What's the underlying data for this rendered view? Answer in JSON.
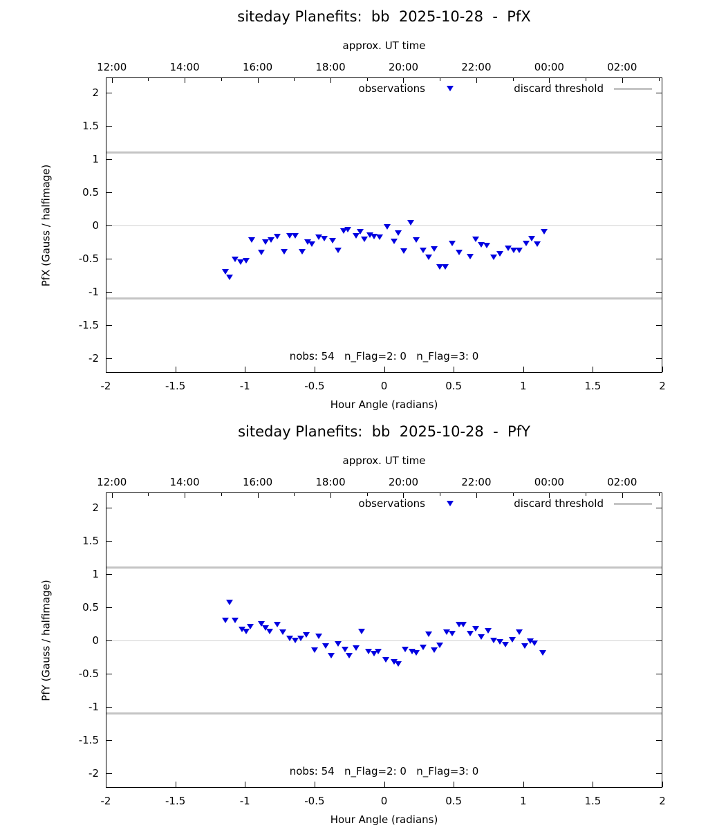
{
  "page": {
    "background": "#ffffff"
  },
  "colors": {
    "marker": "#0000e0",
    "discard_threshold_line": "#c4c4c4",
    "zero_line": "#d2d2d2",
    "axis": "#000000",
    "text": "#000000"
  },
  "chart_data": [
    {
      "type": "scatter",
      "title": "siteday Planefits:  bb  2025-10-28  -  PfX",
      "x2label": "approx. UT time",
      "xlabel": "Hour Angle (radians)",
      "ylabel": "PfX (Gauss / halfimage)",
      "stats_label": "nobs: 54   n_Flag=2: 0   n_Flag=3: 0",
      "legend": [
        {
          "label": "observations",
          "marker": "triangle-down-icon"
        },
        {
          "label": "discard threshold",
          "marker": "gray-line"
        }
      ],
      "legend_position": "top-right-inside",
      "grid": "off",
      "xlim": [
        -2,
        2
      ],
      "ylim": [
        -2.2,
        2.2
      ],
      "xticks": [
        "-2",
        "-1.5",
        "-1",
        "-0.5",
        "0",
        "0.5",
        "1",
        "1.5",
        "2"
      ],
      "yticks": [
        "2",
        "1.5",
        "1",
        "0.5",
        "0",
        "-0.5",
        "-1",
        "-1.5",
        "-2"
      ],
      "x2": {
        "tick_hours": [
          0,
          1,
          2,
          3,
          4,
          5,
          6,
          7,
          8,
          9,
          10,
          11,
          12,
          13,
          14,
          15
        ],
        "labels": [
          {
            "text": "12:00",
            "hour": 0
          },
          {
            "text": "14:00",
            "hour": 2
          },
          {
            "text": "16:00",
            "hour": 4
          },
          {
            "text": "18:00",
            "hour": 6
          },
          {
            "text": "20:00",
            "hour": 8
          },
          {
            "text": "22:00",
            "hour": 10
          },
          {
            "text": "00:00",
            "hour": 12
          },
          {
            "text": "02:00",
            "hour": 14
          }
        ]
      },
      "thresholds": [
        1.1,
        -1.1
      ],
      "zero_line": 0,
      "nobs": 54,
      "points": [
        [
          -1.14,
          -0.7
        ],
        [
          -1.11,
          -0.78
        ],
        [
          -1.07,
          -0.51
        ],
        [
          -1.03,
          -0.55
        ],
        [
          -0.99,
          -0.53
        ],
        [
          -0.95,
          -0.22
        ],
        [
          -0.88,
          -0.41
        ],
        [
          -0.85,
          -0.25
        ],
        [
          -0.81,
          -0.22
        ],
        [
          -0.77,
          -0.17
        ],
        [
          -0.72,
          -0.4
        ],
        [
          -0.68,
          -0.16
        ],
        [
          -0.64,
          -0.16
        ],
        [
          -0.59,
          -0.4
        ],
        [
          -0.55,
          -0.25
        ],
        [
          -0.52,
          -0.28
        ],
        [
          -0.47,
          -0.18
        ],
        [
          -0.43,
          -0.2
        ],
        [
          -0.37,
          -0.23
        ],
        [
          -0.33,
          -0.37
        ],
        [
          -0.29,
          -0.08
        ],
        [
          -0.26,
          -0.06
        ],
        [
          -0.2,
          -0.16
        ],
        [
          -0.17,
          -0.09
        ],
        [
          -0.14,
          -0.21
        ],
        [
          -0.1,
          -0.15
        ],
        [
          -0.07,
          -0.17
        ],
        [
          -0.03,
          -0.18
        ],
        [
          0.02,
          -0.02
        ],
        [
          0.07,
          -0.24
        ],
        [
          0.1,
          -0.11
        ],
        [
          0.14,
          -0.39
        ],
        [
          0.19,
          0.04
        ],
        [
          0.23,
          -0.22
        ],
        [
          0.28,
          -0.37
        ],
        [
          0.32,
          -0.48
        ],
        [
          0.36,
          -0.35
        ],
        [
          0.4,
          -0.62
        ],
        [
          0.44,
          -0.63
        ],
        [
          0.49,
          -0.27
        ],
        [
          0.54,
          -0.41
        ],
        [
          0.62,
          -0.47
        ],
        [
          0.66,
          -0.21
        ],
        [
          0.7,
          -0.29
        ],
        [
          0.74,
          -0.3
        ],
        [
          0.79,
          -0.48
        ],
        [
          0.83,
          -0.43
        ],
        [
          0.89,
          -0.34
        ],
        [
          0.93,
          -0.38
        ],
        [
          0.97,
          -0.38
        ],
        [
          1.02,
          -0.27
        ],
        [
          1.06,
          -0.2
        ],
        [
          1.1,
          -0.28
        ],
        [
          1.15,
          -0.09
        ]
      ]
    },
    {
      "type": "scatter",
      "title": "siteday Planefits:  bb  2025-10-28  -  PfY",
      "x2label": "approx. UT time",
      "xlabel": "Hour Angle (radians)",
      "ylabel": "PfY (Gauss / halfimage)",
      "stats_label": "nobs: 54   n_Flag=2: 0   n_Flag=3: 0",
      "legend": [
        {
          "label": "observations",
          "marker": "triangle-down-icon"
        },
        {
          "label": "discard threshold",
          "marker": "gray-line"
        }
      ],
      "legend_position": "top-right-inside",
      "grid": "off",
      "xlim": [
        -2,
        2
      ],
      "ylim": [
        -2.2,
        2.2
      ],
      "xticks": [
        "-2",
        "-1.5",
        "-1",
        "-0.5",
        "0",
        "0.5",
        "1",
        "1.5",
        "2"
      ],
      "yticks": [
        "2",
        "1.5",
        "1",
        "0.5",
        "0",
        "-0.5",
        "-1",
        "-1.5",
        "-2"
      ],
      "x2": {
        "tick_hours": [
          0,
          1,
          2,
          3,
          4,
          5,
          6,
          7,
          8,
          9,
          10,
          11,
          12,
          13,
          14,
          15
        ],
        "labels": [
          {
            "text": "12:00",
            "hour": 0
          },
          {
            "text": "14:00",
            "hour": 2
          },
          {
            "text": "16:00",
            "hour": 4
          },
          {
            "text": "18:00",
            "hour": 6
          },
          {
            "text": "20:00",
            "hour": 8
          },
          {
            "text": "22:00",
            "hour": 10
          },
          {
            "text": "00:00",
            "hour": 12
          },
          {
            "text": "02:00",
            "hour": 14
          }
        ]
      },
      "thresholds": [
        1.1,
        -1.1
      ],
      "zero_line": 0,
      "nobs": 54,
      "points": [
        [
          -1.14,
          0.3
        ],
        [
          -1.11,
          0.57
        ],
        [
          -1.07,
          0.3
        ],
        [
          -1.02,
          0.17
        ],
        [
          -0.99,
          0.14
        ],
        [
          -0.96,
          0.21
        ],
        [
          -0.88,
          0.25
        ],
        [
          -0.85,
          0.19
        ],
        [
          -0.82,
          0.14
        ],
        [
          -0.77,
          0.24
        ],
        [
          -0.73,
          0.12
        ],
        [
          -0.68,
          0.03
        ],
        [
          -0.64,
          0.0
        ],
        [
          -0.6,
          0.03
        ],
        [
          -0.56,
          0.08
        ],
        [
          -0.5,
          -0.15
        ],
        [
          -0.47,
          0.06
        ],
        [
          -0.42,
          -0.08
        ],
        [
          -0.38,
          -0.23
        ],
        [
          -0.33,
          -0.05
        ],
        [
          -0.28,
          -0.14
        ],
        [
          -0.25,
          -0.23
        ],
        [
          -0.2,
          -0.11
        ],
        [
          -0.16,
          0.14
        ],
        [
          -0.11,
          -0.17
        ],
        [
          -0.07,
          -0.2
        ],
        [
          -0.04,
          -0.17
        ],
        [
          0.01,
          -0.29
        ],
        [
          0.07,
          -0.32
        ],
        [
          0.1,
          -0.35
        ],
        [
          0.15,
          -0.14
        ],
        [
          0.2,
          -0.17
        ],
        [
          0.23,
          -0.19
        ],
        [
          0.28,
          -0.1
        ],
        [
          0.32,
          0.09
        ],
        [
          0.36,
          -0.15
        ],
        [
          0.4,
          -0.07
        ],
        [
          0.45,
          0.13
        ],
        [
          0.49,
          0.1
        ],
        [
          0.54,
          0.24
        ],
        [
          0.57,
          0.24
        ],
        [
          0.62,
          0.1
        ],
        [
          0.66,
          0.18
        ],
        [
          0.7,
          0.05
        ],
        [
          0.75,
          0.15
        ],
        [
          0.79,
          0.0
        ],
        [
          0.83,
          -0.02
        ],
        [
          0.87,
          -0.06
        ],
        [
          0.92,
          0.01
        ],
        [
          0.97,
          0.12
        ],
        [
          1.01,
          -0.08
        ],
        [
          1.05,
          -0.01
        ],
        [
          1.08,
          -0.04
        ],
        [
          1.14,
          -0.19
        ]
      ]
    }
  ]
}
